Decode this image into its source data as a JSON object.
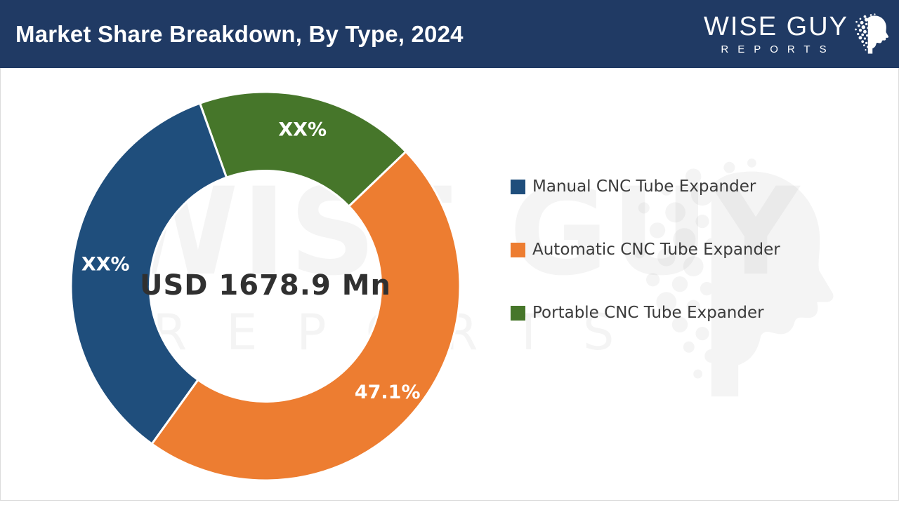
{
  "header": {
    "title": "Market Share Breakdown, By Type, 2024",
    "logo": {
      "line1": "WISE GUY",
      "line2": "REPORTS"
    }
  },
  "watermark": {
    "line1": "WISE GUY",
    "line2": "REPORTS"
  },
  "chart_data": {
    "type": "pie",
    "subtype": "donut",
    "title": "Market Share Breakdown, By Type, 2024",
    "center_label": "USD 1678.9 Mn",
    "legend_position": "right",
    "start_angle_deg": -19.7,
    "inner_radius_ratio": 0.594,
    "slices": [
      {
        "name": "Portable CNC Tube Expander",
        "value_pct": 18.3,
        "display_label": "XX%",
        "color": "#46762A"
      },
      {
        "name": "Automatic CNC Tube Expander",
        "value_pct": 47.1,
        "display_label": "47.1%",
        "color": "#ED7D31"
      },
      {
        "name": "Manual CNC Tube Expander",
        "value_pct": 34.6,
        "display_label": "XX%",
        "color": "#1F4E7C"
      }
    ]
  },
  "legend": {
    "items": [
      {
        "label": "Manual CNC Tube Expander",
        "color": "#1F4E7C"
      },
      {
        "label": "Automatic CNC Tube Expander",
        "color": "#ED7D31"
      },
      {
        "label": "Portable CNC Tube Expander",
        "color": "#46762A"
      }
    ]
  },
  "colors": {
    "header_bg": "#203A64",
    "slice_label_text": "#ffffff",
    "center_text": "#303030",
    "legend_text": "#3b3b3b"
  }
}
